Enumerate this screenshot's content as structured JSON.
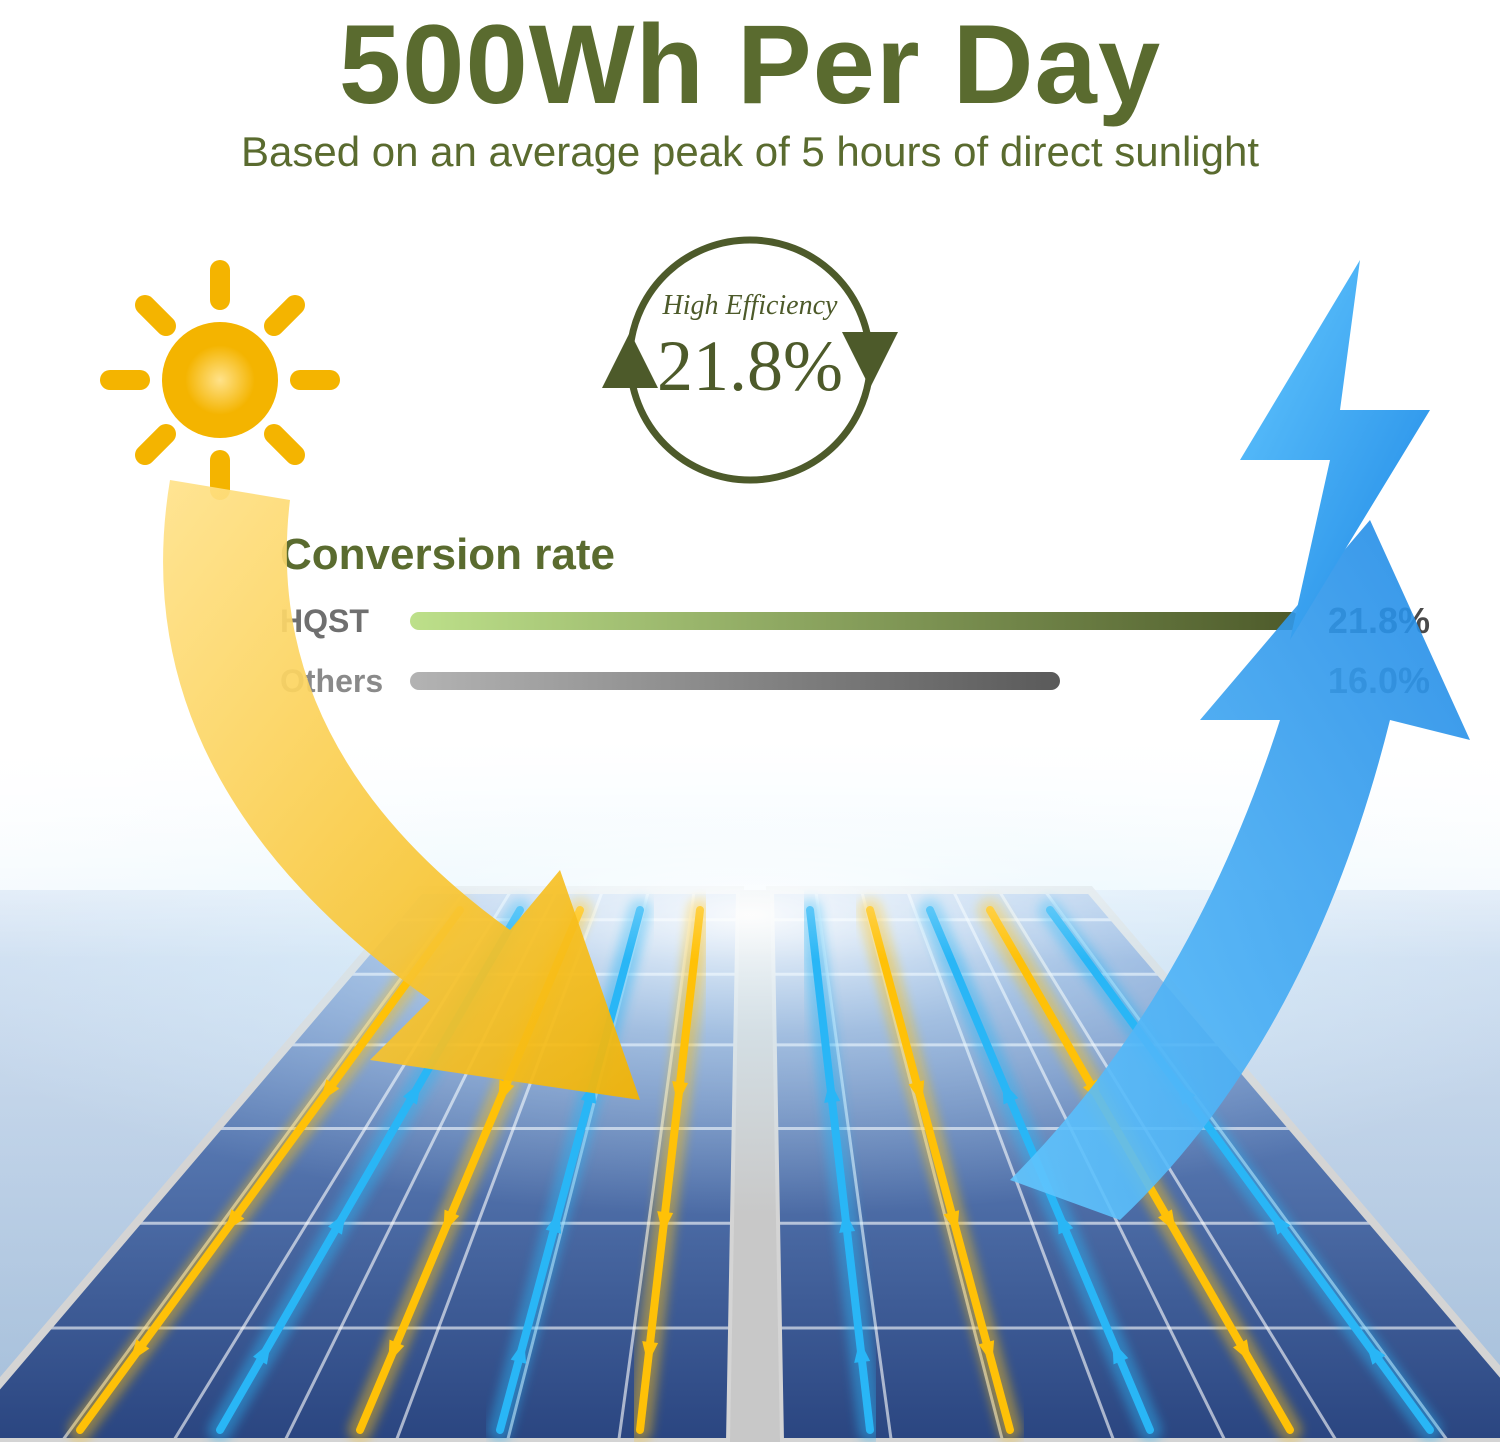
{
  "headline": {
    "text": "500Wh Per Day",
    "fontsize": 112,
    "color": "#5a6b2f"
  },
  "subtitle": {
    "text": "Based on an average peak of 5 hours of direct sunlight",
    "fontsize": 42,
    "color": "#5a6b2f"
  },
  "efficiency_badge": {
    "label": "High Efficiency",
    "label_fontsize": 28,
    "label_color": "#4d5a2a",
    "value": "21.8%",
    "value_fontsize": 72,
    "value_color": "#4d5a2a",
    "ring_color": "#4d5a2a",
    "ring_stroke": 7,
    "diameter": 280
  },
  "conversion": {
    "title": "Conversion rate",
    "title_fontsize": 44,
    "title_color": "#5a6b2f",
    "label_fontsize": 32,
    "value_fontsize": 36,
    "bars": [
      {
        "name": "HQST",
        "label_color": "#6f6f6f",
        "value": "21.8%",
        "value_color": "#4a4a4a",
        "pct": 100,
        "gradient_start": "#bde08a",
        "gradient_end": "#4d5a2a"
      },
      {
        "name": "Others",
        "label_color": "#8a8a8a",
        "value": "16.0%",
        "value_color": "#6b6b6b",
        "pct": 73,
        "gradient_start": "#b3b3b3",
        "gradient_end": "#5a5a5a"
      }
    ]
  },
  "sun": {
    "color": "#f4b400",
    "glow": "#ffe28a"
  },
  "bolt": {
    "color": "#2196f3",
    "light": "#64c8ff"
  },
  "arrow_down": {
    "color": "#f4b400",
    "light": "#ffe28a"
  },
  "arrow_up": {
    "color": "#2196f3",
    "light": "#64c8ff"
  },
  "panel": {
    "cell_fill": "#3a5fa8",
    "cell_light": "#6a8fd0",
    "cell_dark": "#2a4580",
    "frame": "#ffffff",
    "energy_yellow": "#ffc107",
    "energy_blue": "#29b6f6",
    "glow_center": "#dff4ff"
  }
}
